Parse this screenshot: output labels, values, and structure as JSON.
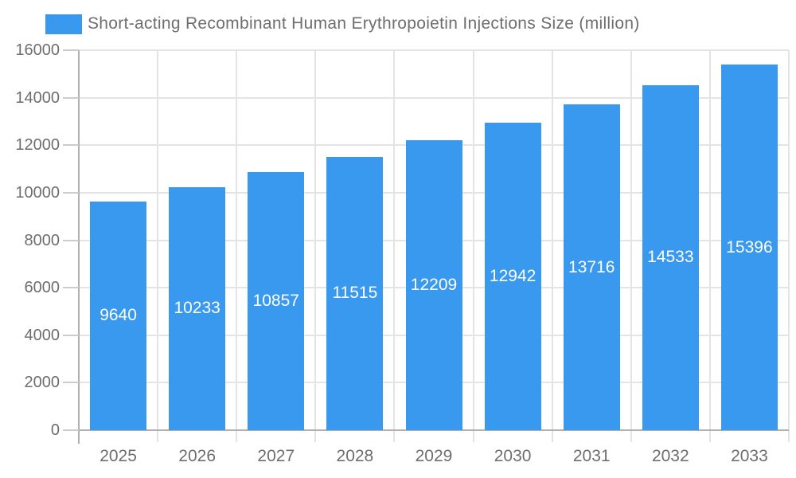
{
  "chart_data": {
    "type": "bar",
    "title": "Short-acting Recombinant Human Erythropoietin Injections Size (million)",
    "legend_entries": [
      "Short-acting Recombinant Human Erythropoietin Injections Size (million)"
    ],
    "legend_position": "top-left",
    "categories": [
      "2025",
      "2026",
      "2027",
      "2028",
      "2029",
      "2030",
      "2031",
      "2032",
      "2033"
    ],
    "values": [
      9640,
      10233,
      10857,
      11515,
      12209,
      12942,
      13716,
      14533,
      15396
    ],
    "value_label_position": "inside-center",
    "xlabel": "",
    "ylabel": "",
    "ylim": [
      0,
      16000
    ],
    "y_ticks": [
      0,
      2000,
      4000,
      6000,
      8000,
      10000,
      12000,
      14000,
      16000
    ],
    "grid": true,
    "colors": {
      "bar": "#3999EE",
      "grid": "#e4e4e4",
      "axis": "#b0b0b0",
      "y_tick_mark": "#cccccc",
      "axis_text": "#6e6e6e",
      "value_label_text": "#ffffff",
      "background": "#ffffff"
    }
  }
}
